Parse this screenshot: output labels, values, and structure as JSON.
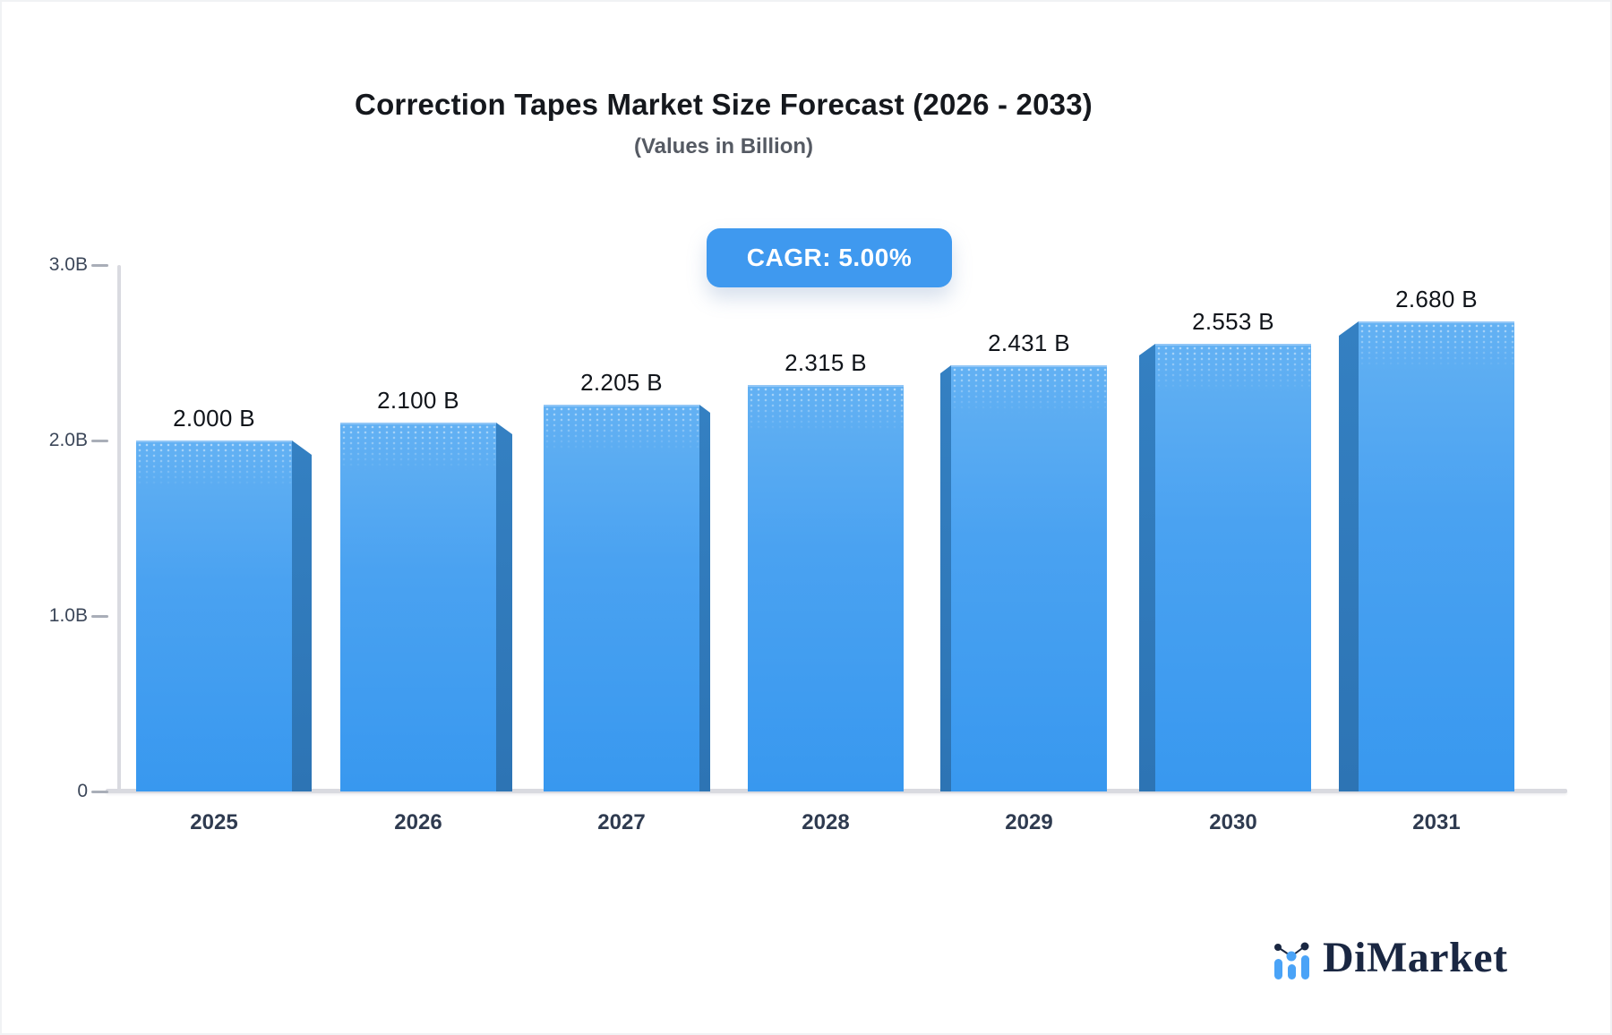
{
  "header": {
    "title": "Correction Tapes Market Size Forecast (2026 - 2033)",
    "subtitle": "(Values in Billion)",
    "cagr_badge": "CAGR: 5.00%"
  },
  "chart_data": {
    "type": "bar",
    "title": "Correction Tapes Market Size Forecast (2026 - 2033)",
    "subtitle": "(Values in Billion)",
    "cagr_percent": 5.0,
    "unit": "Billion",
    "categories": [
      "2025",
      "2026",
      "2027",
      "2028",
      "2029",
      "2030",
      "2031"
    ],
    "values": [
      2.0,
      2.1,
      2.205,
      2.315,
      2.431,
      2.553,
      2.68
    ],
    "value_labels": [
      "2.000 B",
      "2.100 B",
      "2.205 B",
      "2.315 B",
      "2.431 B",
      "2.553 B",
      "2.680 B"
    ],
    "ylim": [
      0,
      3
    ],
    "y_ticks": [
      {
        "label": "3.0B",
        "value": 3.0
      },
      {
        "label": "2.0B",
        "value": 2.0
      },
      {
        "label": "1.0B",
        "value": 1.0
      },
      {
        "label": "0",
        "value": 0
      }
    ],
    "grid": false,
    "legend": false,
    "style_3d": true,
    "colors": {
      "bar_face_top": "#63b1f3",
      "bar_face_bottom": "#3898ef",
      "bar_side": "#2e77b8",
      "badge": "#3f99ef",
      "axis": "#d9dae0"
    }
  },
  "branding": {
    "brand": "DiMarket"
  }
}
